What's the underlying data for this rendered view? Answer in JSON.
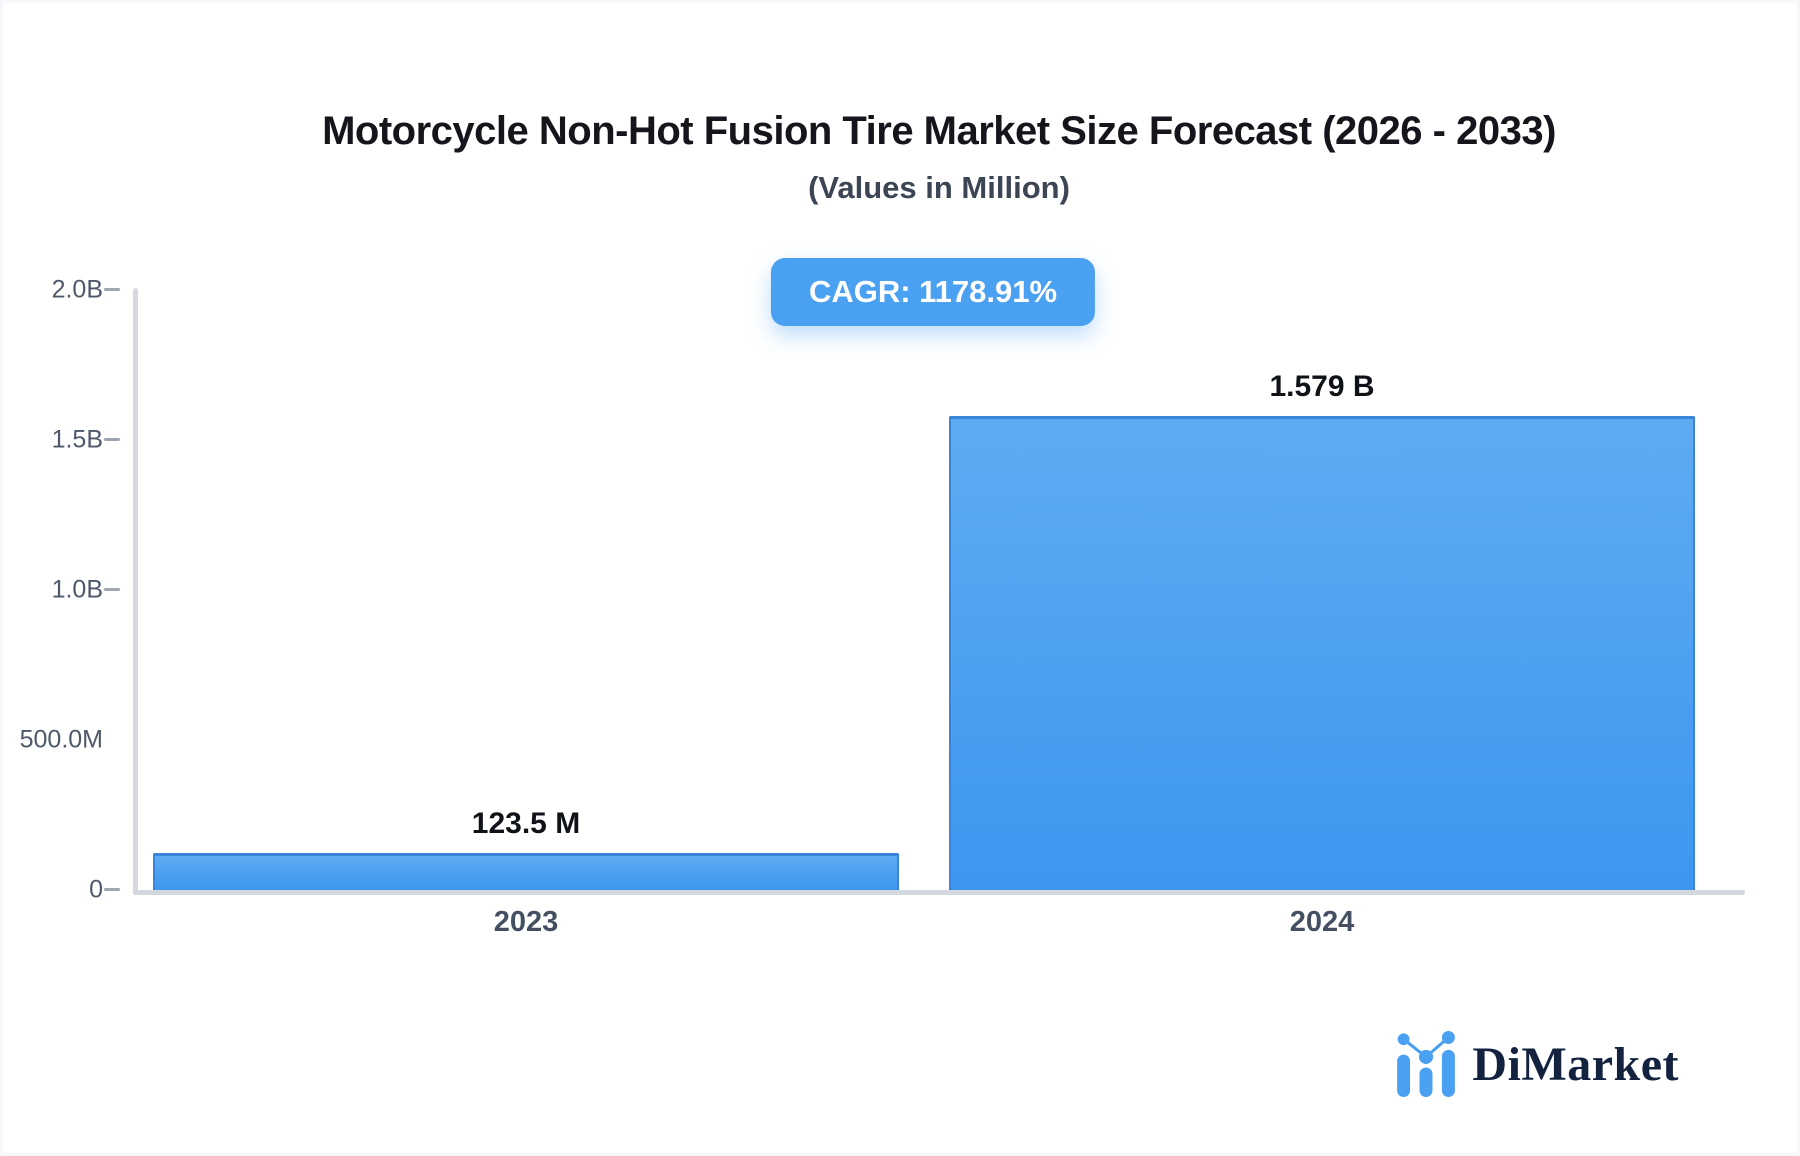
{
  "page": {
    "title": "Motorcycle Non-Hot Fusion Tire Market Size Forecast (2026 - 2033)",
    "subtitle": "(Values in Million)"
  },
  "cagr_badge": {
    "label": "CAGR: 1178.91%",
    "background": "#4aa0f1",
    "text_color": "#ffffff"
  },
  "chart_data": {
    "type": "bar",
    "title": "Motorcycle Non-Hot Fusion Tire Market Size Forecast (2026 - 2033)",
    "subtitle": "(Values in Million)",
    "unit": "Million",
    "categories": [
      "2023",
      "2024"
    ],
    "values": [
      123.5,
      1579
    ],
    "value_labels": [
      "123.5 M",
      "1.579 B"
    ],
    "cagr": "1178.91%",
    "ylim": [
      0,
      2000
    ],
    "yticks": [
      {
        "value": 0,
        "label": "0",
        "dash": true
      },
      {
        "value": 500,
        "label": "500.0M",
        "dash": false
      },
      {
        "value": 1000,
        "label": "1.0B",
        "dash": true
      },
      {
        "value": 1500,
        "label": "1.5B",
        "dash": true
      },
      {
        "value": 2000,
        "label": "2.0B",
        "dash": true
      }
    ],
    "grid": false,
    "legend": false,
    "bar_color_top": "#5fabf2",
    "bar_color_bottom": "#3d96f0",
    "bar_border_color": "#3a85d8",
    "axis_color": "#d5d9df"
  },
  "footer": {
    "brand": "DiMarket",
    "logo_icon": "mini-bar-trend-chart-icon",
    "brand_color": "#13233f",
    "icon_color": "#4aa0f1"
  }
}
